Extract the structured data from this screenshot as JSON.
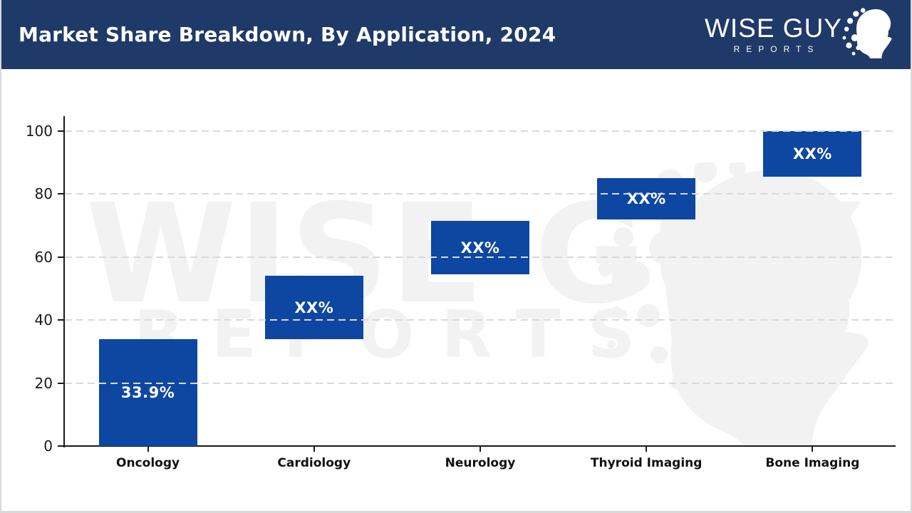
{
  "header": {
    "title": "Market Share Breakdown, By Application, 2024",
    "logo": {
      "line1": "WISE GUY",
      "line2": "REPORTS"
    }
  },
  "watermark": {
    "line1": "WISE GUY",
    "line2": "REPORTS"
  },
  "colors": {
    "header_bg": "#1f3a68",
    "bar": "#0d47a1",
    "bar_label": "#ffffff",
    "gridline": "#d9d9d9",
    "axis": "#1a1a1a",
    "watermark": "#f2f2f2"
  },
  "chart_data": {
    "type": "bar",
    "subtype": "waterfall",
    "title": "Market Share Breakdown, By Application, 2024",
    "categories": [
      "Oncology",
      "Cardiology",
      "Neurology",
      "Thyroid Imaging",
      "Bone Imaging"
    ],
    "series": [
      {
        "name": "Market Share %",
        "starts": [
          0,
          34,
          54.5,
          72,
          85.5
        ],
        "ends": [
          33.9,
          54,
          71.5,
          85,
          100
        ]
      }
    ],
    "bar_labels": [
      "33.9%",
      "XX%",
      "XX%",
      "XX%",
      "XX%"
    ],
    "xlabel": "",
    "ylabel": "",
    "yticks": [
      0,
      20,
      40,
      60,
      80,
      100
    ],
    "ylim": [
      0,
      100
    ],
    "grid": "dashed horizontal, drawn over bars",
    "legend": "none"
  }
}
